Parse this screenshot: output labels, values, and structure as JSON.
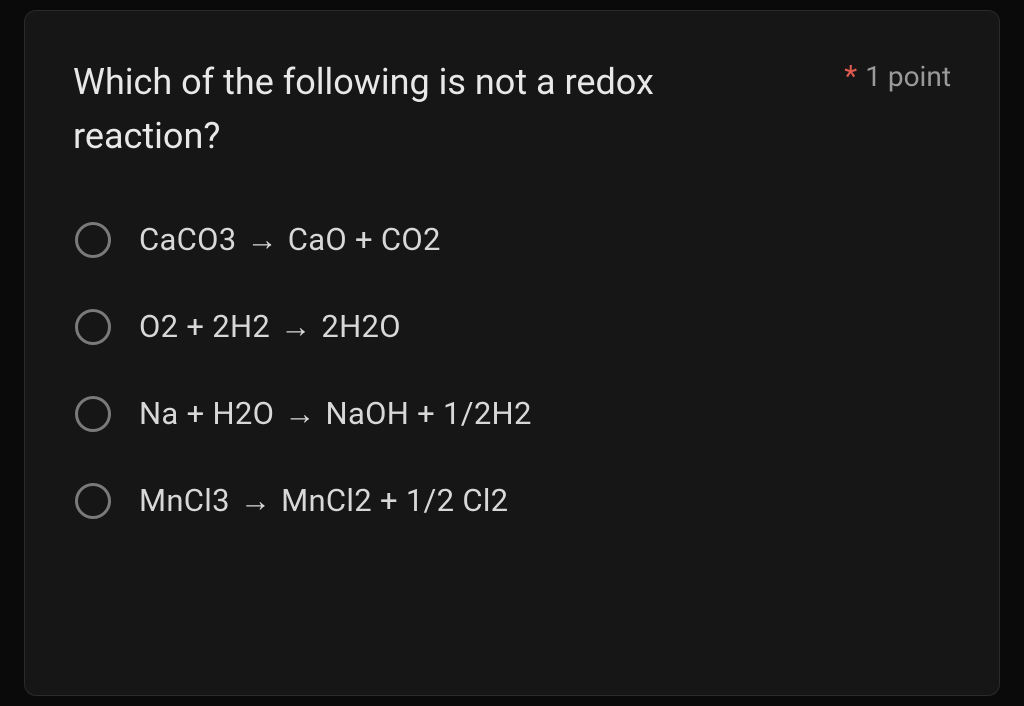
{
  "card": {
    "background": "#161616",
    "border_color": "#2a2a2a",
    "border_radius": 12
  },
  "question": {
    "text": "Which of the following is not a redox reaction?",
    "text_color": "#e8e8e8",
    "fontsize": 36,
    "required_star": "*",
    "required_color": "#e05a4f",
    "points_label": "1 point",
    "points_color": "#9a9a9a",
    "points_fontsize": 28
  },
  "radio_style": {
    "size": 36,
    "border_color": "#7a7a7a",
    "border_width": 3
  },
  "option_style": {
    "text_color": "#d8d8d8",
    "fontsize": 31,
    "gap": 50,
    "arrow_glyph": "→"
  },
  "options": [
    {
      "lhs": "CaCO3",
      "rhs": "CaO + CO2",
      "selected": false
    },
    {
      "lhs": "O2 + 2H2",
      "rhs": "2H2O",
      "selected": false
    },
    {
      "lhs": "Na + H2O",
      "rhs": "NaOH + 1/2H2",
      "selected": false
    },
    {
      "lhs": "MnCl3",
      "rhs": "MnCl2 + 1/2 Cl2",
      "selected": false
    }
  ]
}
